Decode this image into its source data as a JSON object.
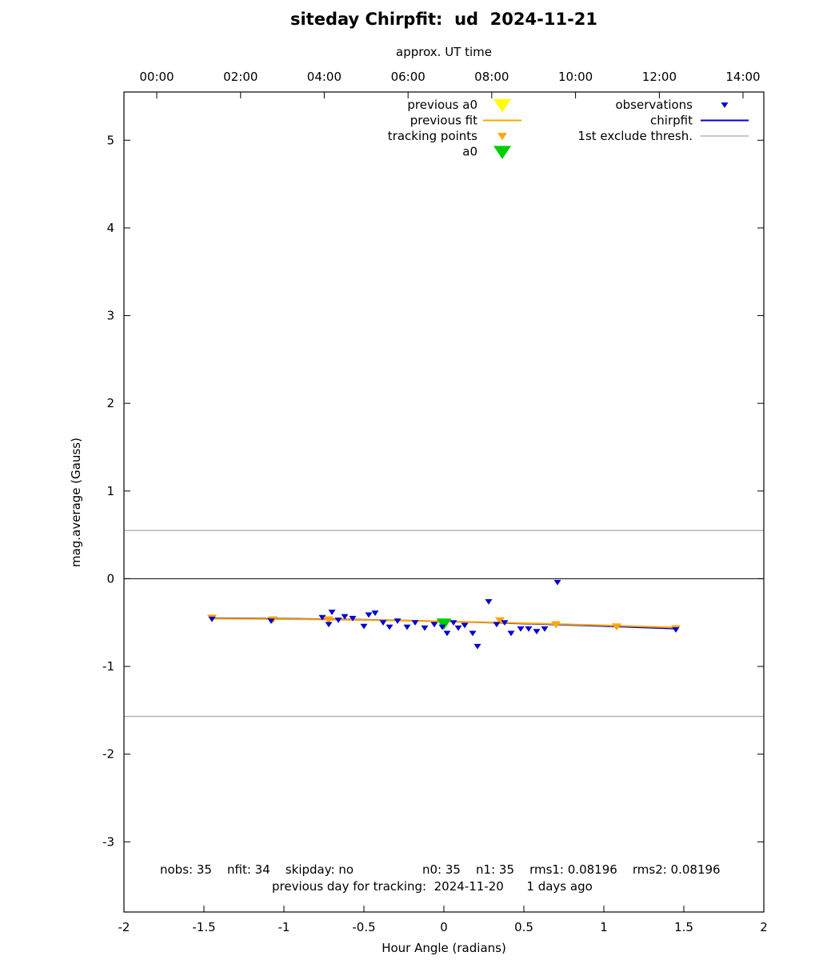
{
  "chart_data": {
    "type": "scatter",
    "title": "siteday Chirpfit:  ud  2024-11-21",
    "top_axis_label": "approx. UT time",
    "xlabel": "Hour Angle (radians)",
    "ylabel": "mag.average (Gauss)",
    "xlim": [
      -2,
      2
    ],
    "ylim": [
      -3.8,
      5.55
    ],
    "x_ticks": [
      -2,
      -1.5,
      -1,
      -0.5,
      0,
      0.5,
      1,
      1.5,
      2
    ],
    "y_ticks": [
      -3,
      -2,
      -1,
      0,
      1,
      2,
      3,
      4,
      5
    ],
    "top_ticks": [
      {
        "label": "00:00",
        "x": -1.795
      },
      {
        "label": "02:00",
        "x": -1.271
      },
      {
        "label": "04:00",
        "x": -0.748
      },
      {
        "label": "06:00",
        "x": -0.224
      },
      {
        "label": "08:00",
        "x": 0.299
      },
      {
        "label": "10:00",
        "x": 0.823
      },
      {
        "label": "12:00",
        "x": 1.347
      },
      {
        "label": "14:00",
        "x": 1.87
      }
    ],
    "zero_line": 0,
    "exclude_thresholds": [
      0.55,
      -1.57
    ],
    "colors": {
      "observations": "#0000cd",
      "chirpfit": "#0000cd",
      "previous_fit": "#ffa500",
      "tracking_points": "#ffa500",
      "a0": "#00cc00",
      "previous_a0": "#ffff00",
      "threshold": "#b3b3b3",
      "axis": "#000000"
    },
    "series": {
      "observations": [
        [
          -1.45,
          -0.46
        ],
        [
          -1.08,
          -0.48
        ],
        [
          -0.76,
          -0.44
        ],
        [
          -0.72,
          -0.52
        ],
        [
          -0.7,
          -0.38
        ],
        [
          -0.66,
          -0.47
        ],
        [
          -0.62,
          -0.43
        ],
        [
          -0.57,
          -0.45
        ],
        [
          -0.5,
          -0.54
        ],
        [
          -0.47,
          -0.41
        ],
        [
          -0.43,
          -0.39
        ],
        [
          -0.38,
          -0.5
        ],
        [
          -0.34,
          -0.55
        ],
        [
          -0.29,
          -0.48
        ],
        [
          -0.23,
          -0.55
        ],
        [
          -0.18,
          -0.5
        ],
        [
          -0.12,
          -0.56
        ],
        [
          -0.06,
          -0.52
        ],
        [
          -0.01,
          -0.55
        ],
        [
          0.02,
          -0.62
        ],
        [
          0.06,
          -0.5
        ],
        [
          0.09,
          -0.56
        ],
        [
          0.13,
          -0.53
        ],
        [
          0.18,
          -0.62
        ],
        [
          0.21,
          -0.77
        ],
        [
          0.28,
          -0.26
        ],
        [
          0.33,
          -0.52
        ],
        [
          0.38,
          -0.5
        ],
        [
          0.42,
          -0.62
        ],
        [
          0.48,
          -0.57
        ],
        [
          0.53,
          -0.57
        ],
        [
          0.58,
          -0.6
        ],
        [
          0.63,
          -0.57
        ],
        [
          0.71,
          -0.04
        ],
        [
          1.45,
          -0.58
        ]
      ],
      "tracking_points": [
        [
          -1.45,
          -0.445
        ],
        [
          -1.07,
          -0.465
        ],
        [
          -0.72,
          -0.465
        ],
        [
          0.35,
          -0.475
        ],
        [
          0.7,
          -0.52
        ],
        [
          1.08,
          -0.545
        ],
        [
          1.45,
          -0.565
        ]
      ],
      "a0": [
        [
          0.0,
          -0.51
        ]
      ],
      "previous_fit": [
        [
          -1.45,
          -0.455
        ],
        [
          -1.2,
          -0.458
        ],
        [
          -0.9,
          -0.462
        ],
        [
          -0.6,
          -0.468
        ],
        [
          -0.3,
          -0.476
        ],
        [
          0,
          -0.486
        ],
        [
          0.3,
          -0.498
        ],
        [
          0.6,
          -0.511
        ],
        [
          0.9,
          -0.526
        ],
        [
          1.2,
          -0.542
        ],
        [
          1.45,
          -0.556
        ]
      ],
      "chirpfit": [
        [
          -1.45,
          -0.449
        ],
        [
          -1.2,
          -0.452
        ],
        [
          -0.9,
          -0.457
        ],
        [
          -0.6,
          -0.464
        ],
        [
          -0.3,
          -0.474
        ],
        [
          0,
          -0.487
        ],
        [
          0.3,
          -0.501
        ],
        [
          0.6,
          -0.517
        ],
        [
          0.9,
          -0.534
        ],
        [
          1.2,
          -0.553
        ],
        [
          1.45,
          -0.57
        ]
      ]
    },
    "legend": {
      "columns": [
        {
          "entries": [
            {
              "label": "previous a0",
              "sample": "marker",
              "color": "#ffff00",
              "size": 11
            },
            {
              "label": "previous fit",
              "sample": "line",
              "color": "#ffa500",
              "width": 2
            },
            {
              "label": "tracking points",
              "sample": "marker",
              "color": "#ffa500",
              "size": 6
            },
            {
              "label": "a0",
              "sample": "marker",
              "color": "#00cc00",
              "size": 11
            }
          ]
        },
        {
          "entries": [
            {
              "label": "observations",
              "sample": "marker",
              "color": "#0000cd",
              "size": 4.5
            },
            {
              "label": "chirpfit",
              "sample": "line",
              "color": "#0000cd",
              "width": 2
            },
            {
              "label": "1st exclude thresh.",
              "sample": "line",
              "color": "#b3b3b3",
              "width": 1.5
            }
          ]
        }
      ]
    },
    "footer": {
      "stats_left": "nobs: 35    nfit: 34    skipday: no",
      "stats_right": "n0: 35    n1: 35    rms1: 0.08196    rms2: 0.08196",
      "tracking_line": "previous day for tracking:  2024-11-20      1 days ago"
    }
  }
}
